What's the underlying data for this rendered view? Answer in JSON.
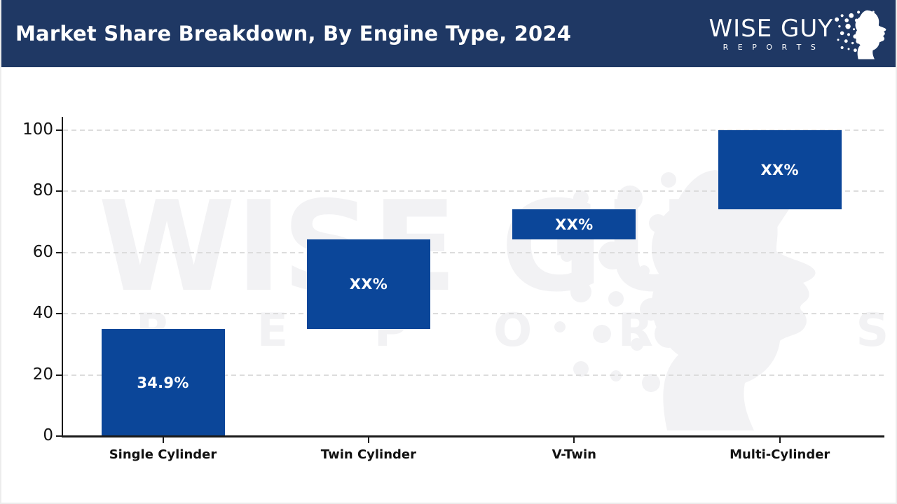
{
  "header": {
    "title": "Market Share Breakdown, By Engine Type, 2024",
    "logo": {
      "line1": "WISE GUY",
      "line2": "R E P O R T S",
      "icon": "dotted-head-profile-icon"
    }
  },
  "watermark": {
    "line1": "WISE GUY",
    "line2": "R E P O R T S",
    "icon": "dotted-head-profile-icon"
  },
  "chart_data": {
    "type": "bar",
    "subtype": "waterfall-floating-bars",
    "title": "Market Share Breakdown, By Engine Type, 2024",
    "categories": [
      "Single Cylinder",
      "Twin Cylinder",
      "V-Twin",
      "Multi-Cylinder"
    ],
    "segments": [
      {
        "category": "Single Cylinder",
        "start": 0,
        "end": 34.9,
        "label": "34.9%"
      },
      {
        "category": "Twin Cylinder",
        "start": 34.9,
        "end": 64.2,
        "label": "XX%"
      },
      {
        "category": "V-Twin",
        "start": 64.2,
        "end": 74.1,
        "label": "XX%"
      },
      {
        "category": "Multi-Cylinder",
        "start": 74.1,
        "end": 100,
        "label": "XX%"
      }
    ],
    "xlabel": "",
    "ylabel": "",
    "ylim": [
      0,
      100
    ],
    "yticks": [
      0,
      20,
      40,
      60,
      80,
      100
    ],
    "grid": "horizontal dashed",
    "legend": "none"
  },
  "colors": {
    "header_bg": "#1f3864",
    "bar": "#0b4699",
    "bar_label": "#ffffff",
    "axis": "#1a1a1a",
    "grid": "#dcdcdc",
    "watermark": "#f2f2f4"
  }
}
